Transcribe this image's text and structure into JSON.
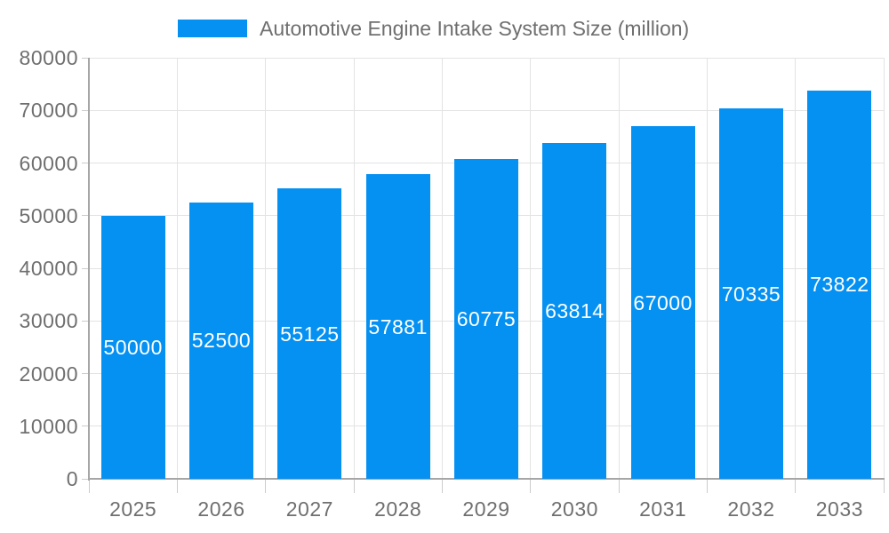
{
  "chart_data": {
    "type": "bar",
    "title": "Automotive Engine Intake System Size (million)",
    "legend_position": "top",
    "categories": [
      "2025",
      "2026",
      "2027",
      "2028",
      "2029",
      "2030",
      "2031",
      "2032",
      "2033"
    ],
    "series": [
      {
        "name": "Automotive Engine Intake System Size (million)",
        "values": [
          50000,
          52500,
          55125,
          57881,
          60775,
          63814,
          67000,
          70335,
          73822
        ]
      }
    ],
    "bar_value_labels": [
      "50000",
      "52500",
      "55125",
      "57881",
      "60775",
      "63814",
      "67000",
      "70335",
      "73822"
    ],
    "xlabel": "",
    "ylabel": "",
    "ylim": [
      0,
      80000
    ],
    "yticks": [
      0,
      10000,
      20000,
      30000,
      40000,
      50000,
      60000,
      70000,
      80000
    ],
    "ytick_labels": [
      "0",
      "10000",
      "20000",
      "30000",
      "40000",
      "50000",
      "60000",
      "70000",
      "80000"
    ],
    "grid": true,
    "colors": {
      "bar": "#0591f2",
      "bar_label_text": "#ffffff",
      "axis_text": "#6f6f6f",
      "legend_text": "#6f6f6f",
      "gridline": "#e3e3e3",
      "axis_line": "#a6a6a6",
      "tick": "#cccccc",
      "background": "#ffffff"
    }
  }
}
